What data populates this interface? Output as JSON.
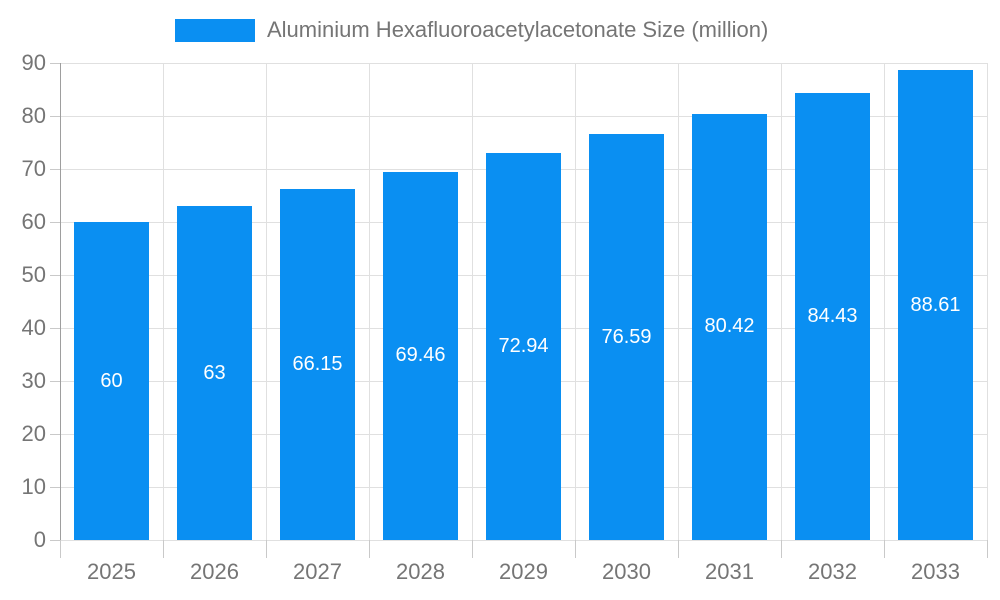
{
  "legend": {
    "label": "Aluminium Hexafluoroacetylacetonate Size (million)"
  },
  "chart_data": {
    "type": "bar",
    "title": "Aluminium Hexafluoroacetylacetonate Size (million)",
    "categories": [
      "2025",
      "2026",
      "2027",
      "2028",
      "2029",
      "2030",
      "2031",
      "2032",
      "2033"
    ],
    "values": [
      60,
      63,
      66.15,
      69.46,
      72.94,
      76.59,
      80.42,
      84.43,
      88.61
    ],
    "value_labels": [
      "60",
      "63",
      "66.15",
      "69.46",
      "72.94",
      "76.59",
      "80.42",
      "84.43",
      "88.61"
    ],
    "xlabel": "",
    "ylabel": "",
    "ylim": [
      0,
      90
    ],
    "ytick_step": 10,
    "grid": true,
    "legend_position": "top-center",
    "colors": {
      "bar": "#0a8ff2",
      "grid": "#e0e0e0",
      "axis": "#9e9e9e",
      "tick": "#c9c9c9",
      "text": "#757575",
      "bar_label": "#ffffff",
      "background": "#ffffff"
    }
  }
}
